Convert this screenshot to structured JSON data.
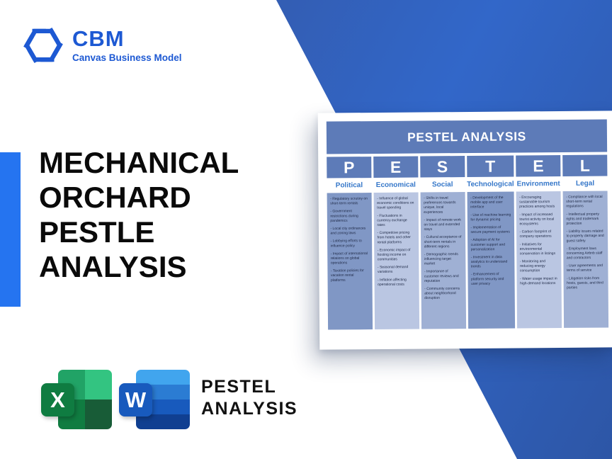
{
  "brand": {
    "name": "CBM",
    "tagline": "Canvas Business Model"
  },
  "hero": {
    "title_lines": [
      "MECHANICAL",
      "ORCHARD",
      "PESTLE",
      "ANALYSIS"
    ]
  },
  "footer": {
    "label_line1": "PESTEL",
    "label_line2": "ANALYSIS",
    "excel_letter": "X",
    "word_letter": "W"
  },
  "table": {
    "title": "PESTEL ANALYSIS",
    "columns": [
      {
        "letter": "P",
        "name": "Political",
        "shade": "dark",
        "items": [
          "Regulatory scrutiny on short-term rentals",
          "Government restrictions during pandemics",
          "Local city ordinances and zoning laws",
          "Lobbying efforts to influence policy",
          "Impact of international relations on global operations",
          "Taxation policies for vacation rental platforms"
        ]
      },
      {
        "letter": "E",
        "name": "Economical",
        "shade": "light",
        "items": [
          "Influence of global economic conditions on travel spending",
          "Fluctuations in currency exchange rates",
          "Competitive pricing from hotels and other rental platforms",
          "Economic impact of hosting income on communities",
          "Seasonal demand variations",
          "Inflation affecting operational costs"
        ]
      },
      {
        "letter": "S",
        "name": "Social",
        "shade": "medium",
        "items": [
          "Shifts in travel preferences towards unique, local experiences",
          "Impact of remote work on travel and extended stays",
          "Cultural acceptance of short-term rentals in different regions",
          "Demographic trends influencing target market",
          "Importance of customer reviews and reputation",
          "Community concerns about neighborhood disruption"
        ]
      },
      {
        "letter": "T",
        "name": "Technological",
        "shade": "dark",
        "items": [
          "Development of the mobile app and user interface",
          "Use of machine learning for dynamic pricing",
          "Implementation of secure payment systems",
          "Adoption of AI for customer support and personalization",
          "Investment in data analytics to understand trends",
          "Enhancement of platform security and user privacy"
        ]
      },
      {
        "letter": "E",
        "name": "Environment",
        "shade": "light",
        "items": [
          "Encouraging sustainable tourism practices among hosts",
          "Impact of increased tourist activity on local ecosystems",
          "Carbon footprint of company operations",
          "Initiatives for environmental conservation in listings",
          "Monitoring and reducing energy consumption",
          "Water usage impact in high-demand locations"
        ]
      },
      {
        "letter": "L",
        "name": "Legal",
        "shade": "medium",
        "items": [
          "Compliance with local short-term rental regulations",
          "Intellectual property rights and trademark protection",
          "Liability issues related to property damage and guest safety",
          "Employment laws concerning Airbnb staff and contractors",
          "User agreements and terms of service",
          "Litigation risks from hosts, guests, and third parties"
        ]
      }
    ]
  },
  "colors": {
    "brand_blue": "#1d59d3",
    "accent_bar_blue": "#2574f0",
    "band_dark": "#34549e",
    "band_bright": "#3267c9",
    "band_deep": "#2d56a6",
    "table_header_blue": "#5d7bb8",
    "col_name_blue": "#3577c9",
    "cell_dark": "#8097c5",
    "cell_light": "#bac6e2",
    "cell_medium": "#9fb0d4",
    "cell_text": "#1f2a47",
    "title_text": "#0a0a0a",
    "excel_q1": "#21a366",
    "excel_q2": "#33c481",
    "excel_q3": "#107c41",
    "excel_q4": "#185c37",
    "excel_square": "#0f7c41",
    "word_b1": "#41a5ee",
    "word_b2": "#2b7cd3",
    "word_b3": "#185abd",
    "word_b4": "#103f91",
    "word_square": "#185abd"
  }
}
